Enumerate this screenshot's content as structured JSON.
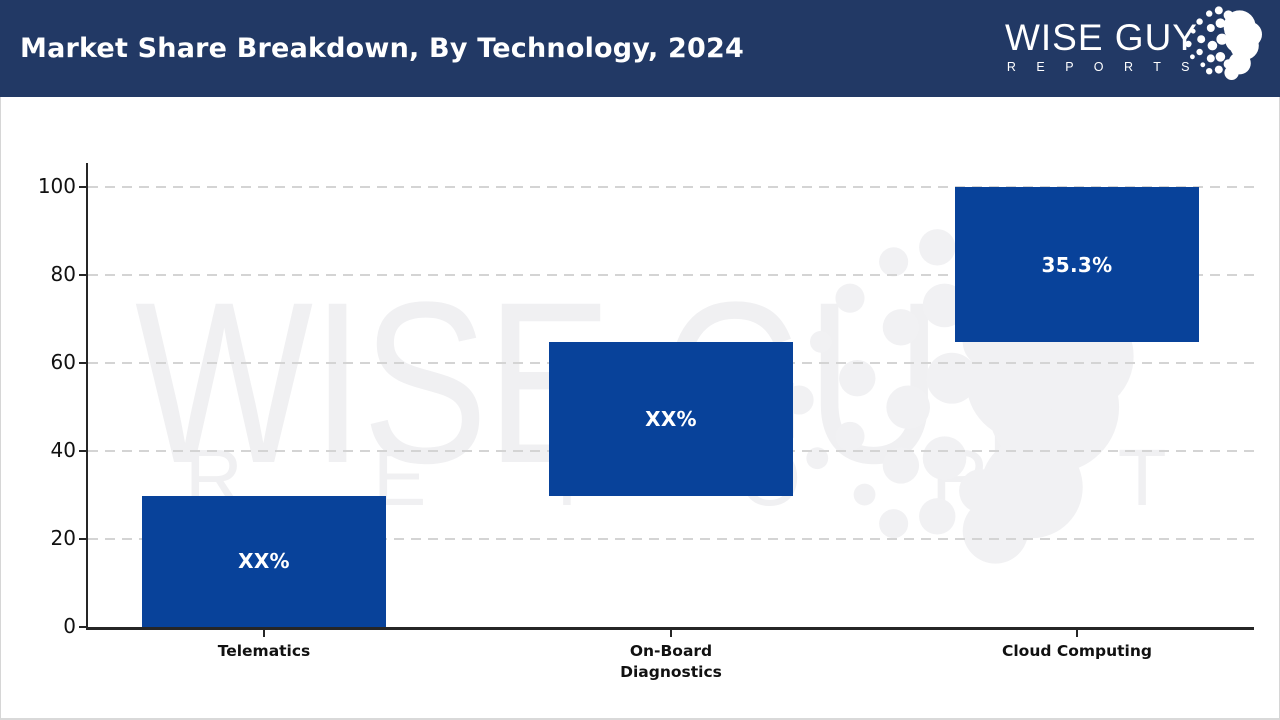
{
  "header": {
    "title": "Market Share Breakdown, By Technology, 2024",
    "logo": {
      "name": "WISE GUY",
      "sub": "R E P O R T S"
    }
  },
  "watermark": {
    "line1": "WISE GUY",
    "line2": "R E P O R T S"
  },
  "colors": {
    "header_bg": "#223965",
    "bar_blue": "#08429a",
    "axis": "#262626",
    "gridline": "#d4d4d4",
    "watermark": "#f0f0f2",
    "bar_label_text": "#ffffff",
    "tick_text": "#111111"
  },
  "chart_data": {
    "type": "bar",
    "variant": "floating-waterfall",
    "title": "Market Share Breakdown, By Technology, 2024",
    "categories": [
      "Telematics",
      "On-Board\nDiagnostics",
      "Cloud Computing"
    ],
    "segments": [
      {
        "category": "Telematics",
        "start": 0,
        "end": 29.8,
        "label": "XX%"
      },
      {
        "category": "On-Board Diagnostics",
        "start": 29.8,
        "end": 64.7,
        "label": "XX%"
      },
      {
        "category": "Cloud Computing",
        "start": 64.7,
        "end": 100,
        "label": "35.3%"
      }
    ],
    "ylim": [
      0,
      100
    ],
    "yticks": [
      0,
      20,
      40,
      60,
      80,
      100
    ],
    "xlabel": "",
    "ylabel": "",
    "grid": "horizontal-dashed",
    "legend": "none"
  }
}
